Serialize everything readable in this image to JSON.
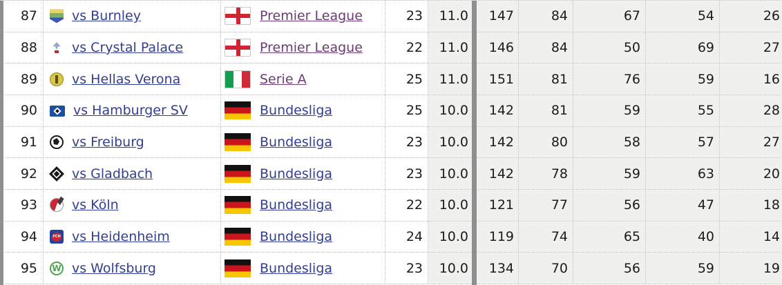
{
  "table": {
    "rows": [
      {
        "rank": "87",
        "team": "vs Burnley",
        "badge": "burnley-badge-icon",
        "flag": "england-flag-icon",
        "league": "Premier League",
        "apps": "23",
        "rating": "11.0",
        "vals": [
          "147",
          "84",
          "67",
          "54",
          "26"
        ]
      },
      {
        "rank": "88",
        "team": "vs Crystal Palace",
        "badge": "crystal-palace-badge-icon",
        "flag": "england-flag-icon",
        "league": "Premier League",
        "apps": "22",
        "rating": "11.0",
        "vals": [
          "146",
          "84",
          "50",
          "69",
          "27"
        ]
      },
      {
        "rank": "89",
        "team": "vs Hellas Verona",
        "badge": "hellas-verona-badge-icon",
        "flag": "italy-flag-icon",
        "league": "Serie A",
        "apps": "25",
        "rating": "11.0",
        "vals": [
          "151",
          "81",
          "76",
          "59",
          "16"
        ]
      },
      {
        "rank": "90",
        "team": "vs Hamburger SV",
        "badge": "hamburger-sv-badge-icon",
        "flag": "germany-flag-icon",
        "league": "Bundesliga",
        "apps": "25",
        "rating": "10.0",
        "vals": [
          "142",
          "81",
          "59",
          "55",
          "28"
        ]
      },
      {
        "rank": "91",
        "team": "vs Freiburg",
        "badge": "freiburg-badge-icon",
        "flag": "germany-flag-icon",
        "league": "Bundesliga",
        "apps": "23",
        "rating": "10.0",
        "vals": [
          "142",
          "80",
          "58",
          "57",
          "27"
        ]
      },
      {
        "rank": "92",
        "team": "vs Gladbach",
        "badge": "gladbach-badge-icon",
        "flag": "germany-flag-icon",
        "league": "Bundesliga",
        "apps": "23",
        "rating": "10.0",
        "vals": [
          "142",
          "78",
          "59",
          "63",
          "20"
        ]
      },
      {
        "rank": "93",
        "team": "vs Köln",
        "badge": "koln-badge-icon",
        "flag": "germany-flag-icon",
        "league": "Bundesliga",
        "apps": "22",
        "rating": "10.0",
        "vals": [
          "121",
          "77",
          "56",
          "47",
          "18"
        ]
      },
      {
        "rank": "94",
        "team": "vs Heidenheim",
        "badge": "heidenheim-badge-icon",
        "flag": "germany-flag-icon",
        "league": "Bundesliga",
        "apps": "24",
        "rating": "10.0",
        "vals": [
          "119",
          "74",
          "65",
          "40",
          "14"
        ]
      },
      {
        "rank": "95",
        "team": "vs Wolfsburg",
        "badge": "wolfsburg-badge-icon",
        "flag": "germany-flag-icon",
        "league": "Bundesliga",
        "apps": "23",
        "rating": "10.0",
        "vals": [
          "134",
          "70",
          "56",
          "59",
          "19"
        ]
      }
    ],
    "colors": {
      "link_blue": "#323e92",
      "link_visited_purple": "#6d3a77",
      "cell_gray": "#f0f0ee",
      "separator_gray": "#8f8f8f"
    }
  }
}
